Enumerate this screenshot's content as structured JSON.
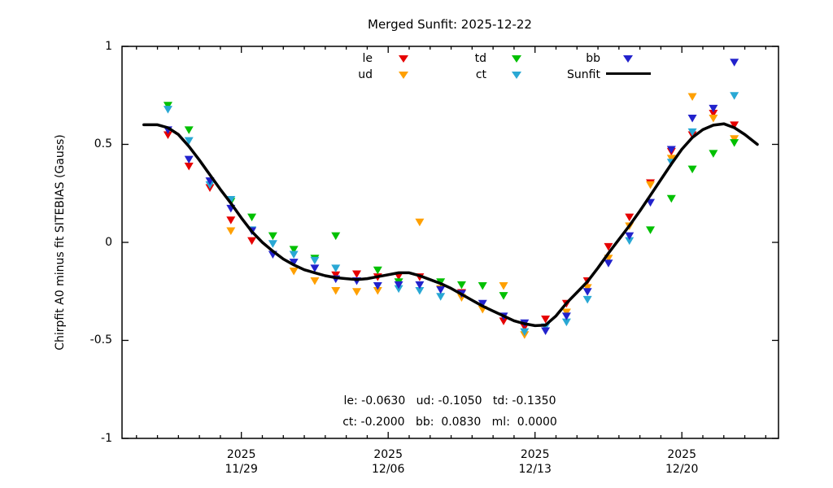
{
  "chart_data": {
    "type": "scatter",
    "title": "Merged Sunfit: 2025-12-22",
    "xlabel": "",
    "ylabel": "Chirpfit A0 minus fit SITEBIAS (Gauss)",
    "ylim": [
      -1,
      1
    ],
    "xlim_days": [
      -5.69,
      25.6
    ],
    "x_day_zero": "2025-11-29",
    "grid": false,
    "legend_position": "top-center-inside",
    "marker_shape": "triangle-down",
    "yticks": [
      {
        "v": 1,
        "label": "1"
      },
      {
        "v": 0.5,
        "label": "0.5"
      },
      {
        "v": 0,
        "label": "0"
      },
      {
        "v": -0.5,
        "label": "-0.5"
      },
      {
        "v": -1,
        "label": "-1"
      }
    ],
    "xticks_major": [
      {
        "d": 0,
        "year": "2025",
        "date": "11/29"
      },
      {
        "d": 7,
        "year": "2025",
        "date": "12/06"
      },
      {
        "d": 14,
        "year": "2025",
        "date": "12/13"
      },
      {
        "d": 21,
        "year": "2025",
        "date": "12/20"
      }
    ],
    "xticks_minor_step_days": 1,
    "series": [
      {
        "name": "le",
        "color": "#e60000",
        "points": [
          [
            -3.5,
            0.55
          ],
          [
            -2.5,
            0.39
          ],
          [
            -1.5,
            0.28
          ],
          [
            -0.5,
            0.115
          ],
          [
            0.5,
            0.01
          ],
          [
            4.5,
            -0.165
          ],
          [
            5.5,
            -0.16
          ],
          [
            6.5,
            -0.175
          ],
          [
            7.5,
            -0.17
          ],
          [
            8.5,
            -0.175
          ],
          [
            10.5,
            -0.255
          ],
          [
            12.5,
            -0.4
          ],
          [
            13.5,
            -0.43
          ],
          [
            14.5,
            -0.39
          ],
          [
            15.5,
            -0.31
          ],
          [
            16.5,
            -0.195
          ],
          [
            17.5,
            -0.02
          ],
          [
            18.5,
            0.13
          ],
          [
            19.5,
            0.305
          ],
          [
            20.5,
            0.465
          ],
          [
            21.5,
            0.55
          ],
          [
            22.5,
            0.66
          ],
          [
            23.5,
            0.6
          ]
        ]
      },
      {
        "name": "ud",
        "color": "#ffa000",
        "points": [
          [
            -0.5,
            0.06
          ],
          [
            2.5,
            -0.145
          ],
          [
            3.5,
            -0.195
          ],
          [
            4.5,
            -0.245
          ],
          [
            5.5,
            -0.25
          ],
          [
            6.5,
            -0.245
          ],
          [
            8.5,
            0.105
          ],
          [
            9.5,
            -0.235
          ],
          [
            10.5,
            -0.28
          ],
          [
            11.5,
            -0.34
          ],
          [
            12.5,
            -0.22
          ],
          [
            13.5,
            -0.47
          ],
          [
            15.5,
            -0.355
          ],
          [
            16.5,
            -0.23
          ],
          [
            17.5,
            -0.08
          ],
          [
            18.5,
            0.085
          ],
          [
            19.5,
            0.295
          ],
          [
            20.5,
            0.43
          ],
          [
            21.5,
            0.745
          ],
          [
            22.5,
            0.635
          ],
          [
            23.5,
            0.53
          ]
        ]
      },
      {
        "name": "td",
        "color": "#00c000",
        "points": [
          [
            -3.5,
            0.7
          ],
          [
            -2.5,
            0.575
          ],
          [
            -0.5,
            0.21
          ],
          [
            0.5,
            0.13
          ],
          [
            1.5,
            0.035
          ],
          [
            2.5,
            -0.035
          ],
          [
            3.5,
            -0.08
          ],
          [
            4.5,
            0.035
          ],
          [
            6.5,
            -0.14
          ],
          [
            7.5,
            -0.2
          ],
          [
            9.5,
            -0.2
          ],
          [
            10.5,
            -0.215
          ],
          [
            11.5,
            -0.22
          ],
          [
            12.5,
            -0.27
          ],
          [
            19.5,
            0.065
          ],
          [
            20.5,
            0.225
          ],
          [
            21.5,
            0.375
          ],
          [
            22.5,
            0.455
          ],
          [
            23.5,
            0.51
          ]
        ]
      },
      {
        "name": "ct",
        "color": "#29a8d4",
        "points": [
          [
            -3.5,
            0.68
          ],
          [
            -2.5,
            0.52
          ],
          [
            -1.5,
            0.295
          ],
          [
            -0.5,
            0.22
          ],
          [
            0.5,
            0.065
          ],
          [
            1.5,
            -0.005
          ],
          [
            2.5,
            -0.06
          ],
          [
            3.5,
            -0.09
          ],
          [
            4.5,
            -0.13
          ],
          [
            7.5,
            -0.235
          ],
          [
            8.5,
            -0.245
          ],
          [
            9.5,
            -0.275
          ],
          [
            13.5,
            -0.455
          ],
          [
            14.5,
            -0.43
          ],
          [
            15.5,
            -0.405
          ],
          [
            16.5,
            -0.29
          ],
          [
            18.5,
            0.01
          ],
          [
            20.5,
            0.41
          ],
          [
            21.5,
            0.565
          ],
          [
            23.5,
            0.75
          ]
        ]
      },
      {
        "name": "bb",
        "color": "#2222cc",
        "points": [
          [
            -3.5,
            0.575
          ],
          [
            -2.5,
            0.425
          ],
          [
            -1.5,
            0.315
          ],
          [
            -0.5,
            0.175
          ],
          [
            0.5,
            0.06
          ],
          [
            1.5,
            -0.06
          ],
          [
            2.5,
            -0.1
          ],
          [
            3.5,
            -0.13
          ],
          [
            4.5,
            -0.185
          ],
          [
            5.5,
            -0.195
          ],
          [
            6.5,
            -0.22
          ],
          [
            7.5,
            -0.215
          ],
          [
            8.5,
            -0.215
          ],
          [
            9.5,
            -0.24
          ],
          [
            10.5,
            -0.26
          ],
          [
            11.5,
            -0.31
          ],
          [
            12.5,
            -0.375
          ],
          [
            13.5,
            -0.41
          ],
          [
            14.5,
            -0.45
          ],
          [
            15.5,
            -0.375
          ],
          [
            16.5,
            -0.25
          ],
          [
            17.5,
            -0.105
          ],
          [
            18.5,
            0.035
          ],
          [
            19.5,
            0.205
          ],
          [
            20.5,
            0.475
          ],
          [
            21.5,
            0.635
          ],
          [
            22.5,
            0.685
          ],
          [
            23.5,
            0.92
          ]
        ]
      }
    ],
    "fit_line": {
      "name": "Sunfit",
      "color": "#000000",
      "points": [
        [
          -4.65,
          0.6
        ],
        [
          -4.0,
          0.6
        ],
        [
          -3.5,
          0.585
        ],
        [
          -3.0,
          0.55
        ],
        [
          -2.5,
          0.49
        ],
        [
          -2.0,
          0.42
        ],
        [
          -1.5,
          0.345
        ],
        [
          -1.0,
          0.27
        ],
        [
          -0.5,
          0.2
        ],
        [
          0.0,
          0.125
        ],
        [
          0.5,
          0.055
        ],
        [
          1.0,
          0.0
        ],
        [
          1.5,
          -0.045
        ],
        [
          2.0,
          -0.085
        ],
        [
          2.5,
          -0.115
        ],
        [
          3.0,
          -0.14
        ],
        [
          3.5,
          -0.155
        ],
        [
          4.0,
          -0.17
        ],
        [
          4.5,
          -0.18
        ],
        [
          5.0,
          -0.185
        ],
        [
          5.5,
          -0.19
        ],
        [
          6.0,
          -0.185
        ],
        [
          6.5,
          -0.175
        ],
        [
          7.0,
          -0.165
        ],
        [
          7.5,
          -0.155
        ],
        [
          8.0,
          -0.155
        ],
        [
          8.5,
          -0.17
        ],
        [
          9.0,
          -0.19
        ],
        [
          9.5,
          -0.21
        ],
        [
          10.0,
          -0.235
        ],
        [
          10.5,
          -0.265
        ],
        [
          11.0,
          -0.295
        ],
        [
          11.5,
          -0.325
        ],
        [
          12.0,
          -0.35
        ],
        [
          12.5,
          -0.375
        ],
        [
          13.0,
          -0.4
        ],
        [
          13.5,
          -0.415
        ],
        [
          14.0,
          -0.425
        ],
        [
          14.5,
          -0.422
        ],
        [
          15.0,
          -0.375
        ],
        [
          15.5,
          -0.31
        ],
        [
          16.0,
          -0.255
        ],
        [
          16.5,
          -0.2
        ],
        [
          17.0,
          -0.13
        ],
        [
          17.5,
          -0.055
        ],
        [
          18.0,
          0.015
        ],
        [
          18.5,
          0.085
        ],
        [
          19.0,
          0.16
        ],
        [
          19.5,
          0.24
        ],
        [
          20.0,
          0.32
        ],
        [
          20.5,
          0.4
        ],
        [
          21.0,
          0.475
        ],
        [
          21.5,
          0.535
        ],
        [
          22.0,
          0.575
        ],
        [
          22.5,
          0.598
        ],
        [
          23.0,
          0.605
        ],
        [
          23.5,
          0.585
        ],
        [
          24.0,
          0.55
        ],
        [
          24.6,
          0.5
        ]
      ]
    },
    "annotations": [
      "le: -0.0630   ud: -0.1050   td: -0.1350",
      "ct: -0.2000   bb:  0.0830   ml:  0.0000"
    ]
  }
}
